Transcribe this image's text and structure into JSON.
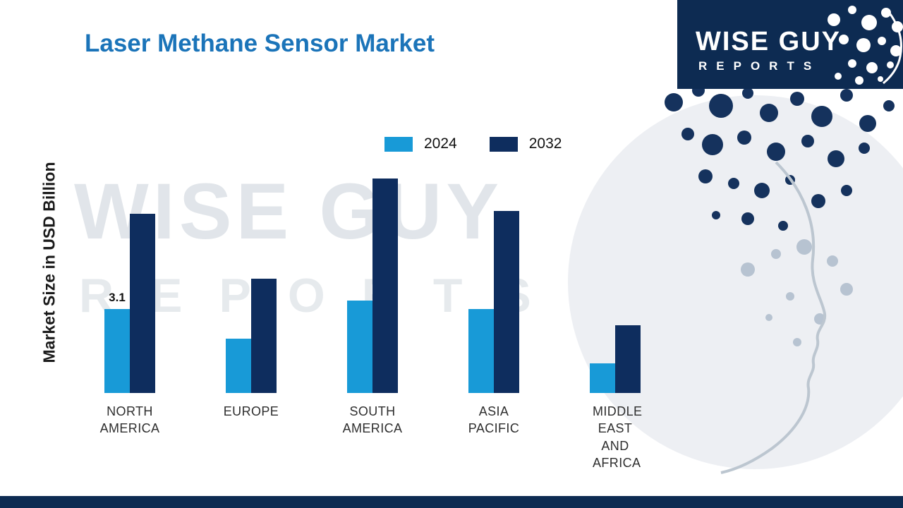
{
  "title": "Laser Methane Sensor Market",
  "ylabel": "Market Size in USD Billion",
  "logo": {
    "line1": "WISE GUY",
    "line2": "REPORTS"
  },
  "watermark": {
    "line1": "WISE GUY",
    "line2": "REPORTS"
  },
  "legend": [
    {
      "label": "2024",
      "color": "#189ad7"
    },
    {
      "label": "2032",
      "color": "#0e2d5e"
    }
  ],
  "colors": {
    "title_blue": "#1b74b9",
    "brand_navy": "#0d2b52",
    "series_2024": "#189ad7",
    "series_2032": "#0e2d5e"
  },
  "chart_data": {
    "type": "bar",
    "title": "Laser Methane Sensor Market",
    "xlabel": "",
    "ylabel": "Market Size in USD Billion",
    "categories": [
      "NORTH AMERICA",
      "EUROPE",
      "SOUTH AMERICA",
      "ASIA PACIFIC",
      "MIDDLE EAST AND AFRICA"
    ],
    "series": [
      {
        "name": "2024",
        "color": "#189ad7",
        "values": [
          3.1,
          2.0,
          3.4,
          3.1,
          1.1
        ]
      },
      {
        "name": "2032",
        "color": "#0e2d5e",
        "values": [
          6.6,
          4.2,
          7.9,
          6.7,
          2.5
        ]
      }
    ],
    "annotations": [
      {
        "category_index": 0,
        "series_index": 0,
        "text": "3.1"
      }
    ],
    "ylim": [
      0,
      8.5
    ],
    "grid": false,
    "legend_position": "top-center",
    "unit": "USD Billion"
  }
}
